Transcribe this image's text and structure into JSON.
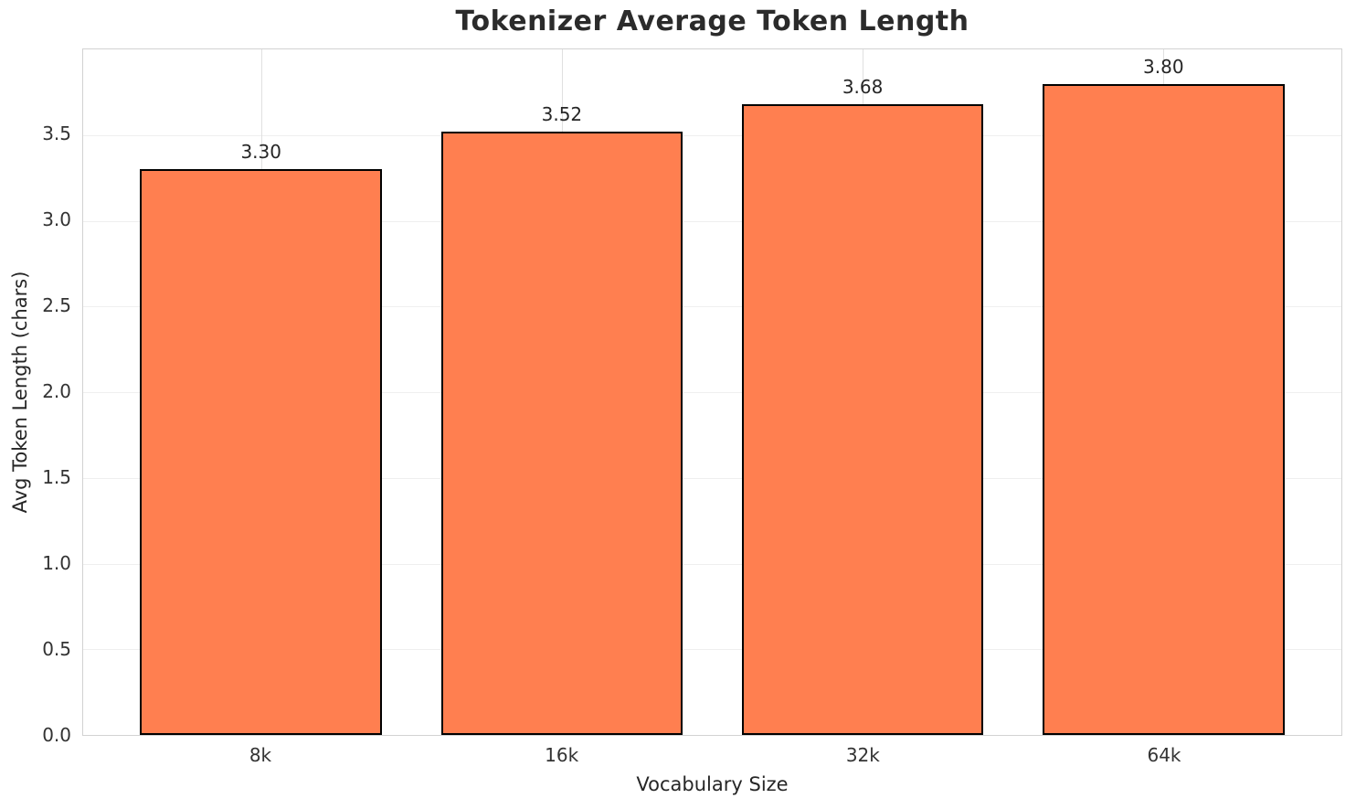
{
  "chart_data": {
    "type": "bar",
    "title": "Tokenizer Average Token Length",
    "xlabel": "Vocabulary Size",
    "ylabel": "Avg Token Length (chars)",
    "categories": [
      "8k",
      "16k",
      "32k",
      "64k"
    ],
    "values": [
      3.3,
      3.52,
      3.68,
      3.8
    ],
    "value_labels": [
      "3.30",
      "3.52",
      "3.68",
      "3.80"
    ],
    "yticks": [
      0.0,
      0.5,
      1.0,
      1.5,
      2.0,
      2.5,
      3.0,
      3.5
    ],
    "ytick_labels": [
      "0.0",
      "0.5",
      "1.0",
      "1.5",
      "2.0",
      "2.5",
      "3.0",
      "3.5"
    ],
    "ylim": [
      0,
      4.0
    ],
    "grid": true,
    "legend": null,
    "colors": {
      "bar_fill": "#FF7F50",
      "bar_edge": "#000000",
      "grid_horizontal": "#efefef",
      "grid_vertical": "#e0e0e0",
      "spine": "#d2d2d2",
      "title_text": "#2b2b2b",
      "tick_text": "#333333",
      "label_text": "#262626",
      "background": "#ffffff"
    }
  }
}
